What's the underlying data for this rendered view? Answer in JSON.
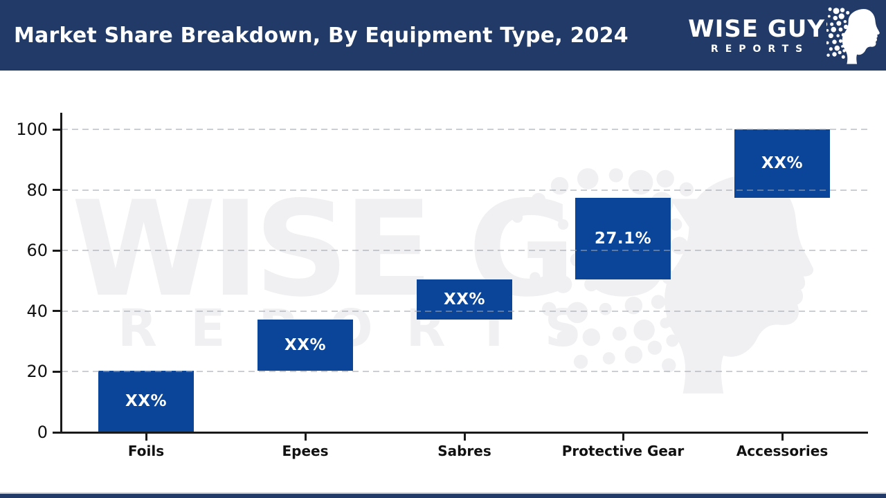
{
  "header": {
    "title": "Market Share Breakdown, By Equipment Type, 2024",
    "logo_line1": "WISE GUY",
    "logo_line2": "REPORTS"
  },
  "watermark": {
    "line1": "WISE GUY",
    "line2": "REPORTS"
  },
  "chart_data": {
    "type": "bar",
    "subtype": "waterfall",
    "title": "Market Share Breakdown, By Equipment Type, 2024",
    "xlabel": "",
    "ylabel": "",
    "categories": [
      "Foils",
      "Epees",
      "Sabres",
      "Protective Gear",
      "Accessories"
    ],
    "bars": [
      {
        "category": "Foils",
        "base": 0,
        "value": 20.4,
        "label": "XX%"
      },
      {
        "category": "Epees",
        "base": 20.4,
        "value": 16.9,
        "label": "XX%"
      },
      {
        "category": "Sabres",
        "base": 37.3,
        "value": 13.1,
        "label": "XX%"
      },
      {
        "category": "Protective Gear",
        "base": 50.4,
        "value": 27.1,
        "label": "27.1%"
      },
      {
        "category": "Accessories",
        "base": 77.5,
        "value": 22.5,
        "label": "XX%"
      }
    ],
    "yticks": [
      0,
      20,
      40,
      60,
      80,
      100
    ],
    "ylim": [
      0,
      105
    ],
    "grid": "horizontal-dashed",
    "legend": "none"
  },
  "colors": {
    "header_bg": "#213a67",
    "bar": "#0b4599",
    "bar_label": "#ffffff",
    "axis": "#1a1a1a",
    "gridline": "#d8d8d8",
    "watermark": "#f0f0f2",
    "footer_line": "#c9c9c9"
  }
}
